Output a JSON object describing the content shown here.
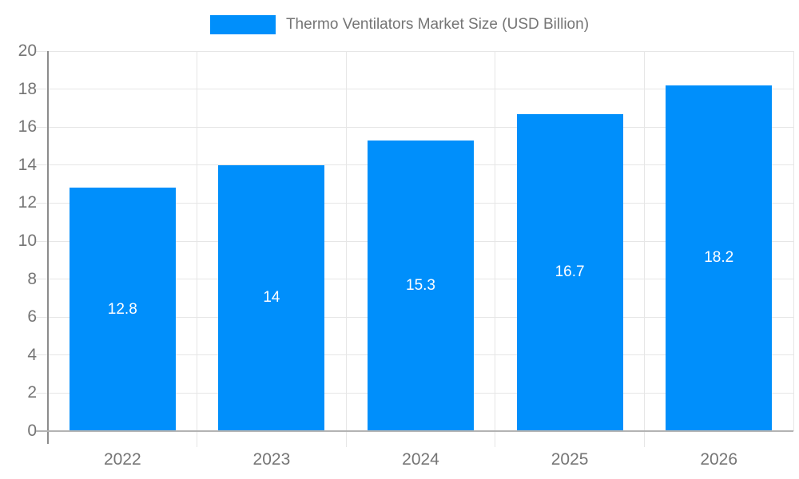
{
  "chart_data": {
    "type": "bar",
    "categories": [
      "2022",
      "2023",
      "2024",
      "2025",
      "2026"
    ],
    "series": [
      {
        "name": "Thermo Ventilators Market Size (USD Billion)",
        "values": [
          12.8,
          14,
          15.3,
          16.7,
          18.2
        ]
      }
    ],
    "data_labels": [
      "12.8",
      "14",
      "15.3",
      "16.7",
      "18.2"
    ],
    "ytick_labels": [
      "0",
      "2",
      "4",
      "6",
      "8",
      "10",
      "12",
      "14",
      "16",
      "18",
      "20"
    ],
    "xlabel": "",
    "ylabel": "",
    "ylim": [
      0,
      20
    ],
    "ytick_step": 2,
    "grid": "on",
    "legend_position": "top"
  },
  "style": {
    "bar_color": "#008FFB",
    "axis_label_color": "#757575",
    "legend_text_color": "#757575",
    "gridline_color": "#e6e6e6",
    "baseline_color": "#b3b3b3",
    "axis_line_color": "#8c8c8c",
    "value_label_color": "#ffffff",
    "background_color": "#ffffff"
  }
}
